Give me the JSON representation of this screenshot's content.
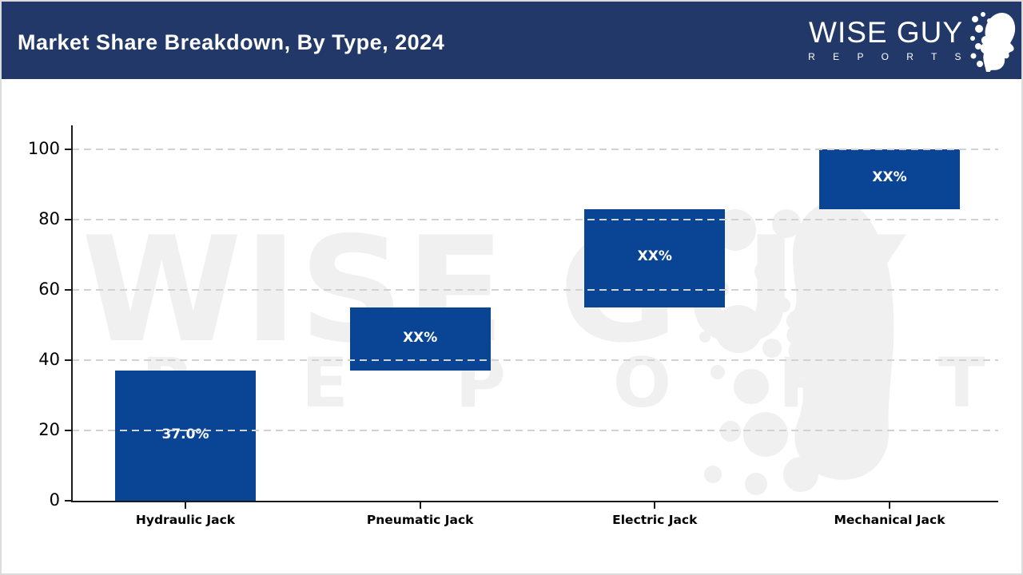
{
  "header": {
    "title": "Market Share Breakdown, By Type, 2024",
    "bg_color": "#213868",
    "logo": {
      "wordmark": "WISE GUY",
      "subtext": "R E P O R T S"
    }
  },
  "watermark": {
    "line1": "WISE GUY",
    "line2": "R E P O R T S"
  },
  "chart_data": {
    "type": "bar",
    "subtype": "waterfall",
    "title": "Market Share Breakdown, By Type, 2024",
    "categories": [
      "Hydraulic Jack",
      "Pneumatic Jack",
      "Electric Jack",
      "Mechanical Jack"
    ],
    "segments": [
      {
        "category": "Hydraulic Jack",
        "start": 0,
        "end": 37,
        "label": "37.0%"
      },
      {
        "category": "Pneumatic Jack",
        "start": 37,
        "end": 55,
        "label": "XX%"
      },
      {
        "category": "Electric Jack",
        "start": 55,
        "end": 83,
        "label": "XX%"
      },
      {
        "category": "Mechanical Jack",
        "start": 83,
        "end": 100,
        "label": "XX%"
      }
    ],
    "y_ticks": [
      0,
      20,
      40,
      60,
      80,
      100
    ],
    "ylim": [
      0,
      105
    ],
    "xlabel": "",
    "ylabel": "",
    "grid": "horizontal-dashed",
    "legend": "none",
    "bar_color": "#0a4595",
    "bar_label_color": "#ffffff",
    "axis_color": "#1a1a1a"
  }
}
